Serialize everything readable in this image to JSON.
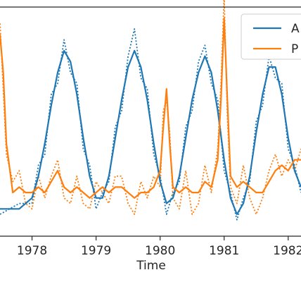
{
  "chart_data": {
    "type": "line",
    "xlabel": "Time",
    "xlim": [
      1977.5,
      1982.2
    ],
    "ylim": [
      -0.5,
      3.7
    ],
    "grid": false,
    "legend": {
      "placement": "top-right",
      "entries": [
        "A",
        "P"
      ]
    },
    "x_ticks": [
      {
        "value": 1978,
        "label": "1978"
      },
      {
        "value": 1979,
        "label": "1979"
      },
      {
        "value": 1980,
        "label": "1980"
      },
      {
        "value": 1981,
        "label": "1981"
      },
      {
        "value": 1982,
        "label": "1982"
      }
    ],
    "colors": {
      "A": "#1f77b4",
      "P": "#ff7f0e"
    },
    "series": [
      {
        "name": "A",
        "style": "solid",
        "color": "#1f77b4",
        "x": [
          1977.5,
          1977.8,
          1978.0,
          1978.1,
          1978.2,
          1978.3,
          1978.4,
          1978.5,
          1978.6,
          1978.7,
          1978.8,
          1978.9,
          1979.0,
          1979.1,
          1979.2,
          1979.3,
          1979.4,
          1979.5,
          1979.6,
          1979.7,
          1979.8,
          1979.9,
          1980.0,
          1980.1,
          1980.2,
          1980.3,
          1980.4,
          1980.5,
          1980.6,
          1980.7,
          1980.8,
          1980.9,
          1981.0,
          1981.1,
          1981.2,
          1981.3,
          1981.4,
          1981.5,
          1981.6,
          1981.7,
          1981.8,
          1981.9,
          1982.0,
          1982.1,
          1982.2
        ],
        "y": [
          0.0,
          0.0,
          0.2,
          0.6,
          1.2,
          1.9,
          2.5,
          2.9,
          2.7,
          2.1,
          1.3,
          0.6,
          0.2,
          0.2,
          0.6,
          1.3,
          2.0,
          2.6,
          2.9,
          2.6,
          2.0,
          1.2,
          0.5,
          0.1,
          0.2,
          0.6,
          1.3,
          2.0,
          2.5,
          2.8,
          2.5,
          1.8,
          0.9,
          0.2,
          -0.1,
          0.1,
          0.6,
          1.4,
          2.1,
          2.6,
          2.6,
          2.1,
          1.3,
          0.7,
          0.4
        ]
      },
      {
        "name": "A (dotted)",
        "style": "dotted",
        "color": "#1f77b4",
        "x": [
          1977.5,
          1977.8,
          1978.0,
          1978.1,
          1978.2,
          1978.3,
          1978.4,
          1978.5,
          1978.6,
          1978.7,
          1978.8,
          1978.9,
          1979.0,
          1979.1,
          1979.2,
          1979.3,
          1979.4,
          1979.5,
          1979.6,
          1979.7,
          1979.8,
          1979.9,
          1980.0,
          1980.1,
          1980.2,
          1980.3,
          1980.4,
          1980.5,
          1980.6,
          1980.7,
          1980.8,
          1980.9,
          1981.0,
          1981.1,
          1981.2,
          1981.3,
          1981.4,
          1981.5,
          1981.6,
          1981.7,
          1981.8,
          1981.9,
          1982.0,
          1982.1,
          1982.2
        ],
        "y": [
          -0.1,
          0.1,
          0.1,
          0.8,
          1.0,
          2.1,
          2.3,
          3.1,
          2.5,
          2.3,
          1.1,
          0.8,
          0.0,
          0.3,
          0.5,
          1.5,
          1.8,
          2.8,
          3.3,
          2.4,
          2.2,
          1.0,
          0.6,
          -0.1,
          0.3,
          0.5,
          1.5,
          1.8,
          2.7,
          3.0,
          2.3,
          2.0,
          0.7,
          0.3,
          -0.2,
          0.2,
          0.5,
          1.6,
          1.9,
          2.8,
          2.4,
          2.3,
          1.1,
          0.8,
          0.3
        ]
      },
      {
        "name": "P",
        "style": "solid",
        "color": "#ff7f0e",
        "x": [
          1977.5,
          1977.55,
          1977.6,
          1977.7,
          1977.8,
          1977.9,
          1978.0,
          1978.1,
          1978.2,
          1978.3,
          1978.4,
          1978.5,
          1978.6,
          1978.7,
          1978.8,
          1978.9,
          1979.0,
          1979.1,
          1979.2,
          1979.3,
          1979.4,
          1979.5,
          1979.6,
          1979.7,
          1979.8,
          1979.9,
          1980.0,
          1980.05,
          1980.1,
          1980.15,
          1980.2,
          1980.3,
          1980.4,
          1980.5,
          1980.6,
          1980.7,
          1980.8,
          1980.9,
          1980.95,
          1981.0,
          1981.05,
          1981.1,
          1981.2,
          1981.3,
          1981.4,
          1981.5,
          1981.6,
          1981.7,
          1981.8,
          1981.9,
          1982.0,
          1982.1,
          1982.2
        ],
        "y": [
          3.2,
          2.5,
          1.2,
          0.3,
          0.4,
          0.3,
          0.3,
          0.4,
          0.3,
          0.5,
          0.7,
          0.4,
          0.3,
          0.4,
          0.3,
          0.2,
          0.3,
          0.4,
          0.3,
          0.4,
          0.4,
          0.3,
          0.2,
          0.3,
          0.3,
          0.4,
          0.7,
          1.5,
          2.2,
          1.2,
          0.4,
          0.3,
          0.4,
          0.3,
          0.3,
          0.5,
          0.4,
          0.9,
          2.0,
          3.5,
          2.0,
          0.6,
          0.4,
          0.5,
          0.4,
          0.3,
          0.3,
          0.5,
          0.7,
          0.8,
          0.7,
          0.9,
          0.9
        ]
      },
      {
        "name": "P (dotted)",
        "style": "dotted",
        "color": "#ff7f0e",
        "x": [
          1977.5,
          1977.55,
          1977.6,
          1977.7,
          1977.8,
          1977.9,
          1978.0,
          1978.1,
          1978.2,
          1978.3,
          1978.4,
          1978.5,
          1978.6,
          1978.7,
          1978.8,
          1978.9,
          1979.0,
          1979.1,
          1979.2,
          1979.3,
          1979.4,
          1979.5,
          1979.6,
          1979.7,
          1979.8,
          1979.9,
          1980.0,
          1980.05,
          1980.1,
          1980.15,
          1980.2,
          1980.3,
          1980.4,
          1980.5,
          1980.6,
          1980.7,
          1980.8,
          1980.9,
          1980.95,
          1981.0,
          1981.05,
          1981.1,
          1981.2,
          1981.3,
          1981.4,
          1981.5,
          1981.6,
          1981.7,
          1981.8,
          1981.9,
          1982.0,
          1982.1,
          1982.2
        ],
        "y": [
          3.4,
          2.2,
          1.0,
          0.5,
          0.7,
          0.1,
          0.0,
          0.6,
          0.2,
          0.6,
          0.9,
          0.2,
          0.1,
          0.6,
          0.1,
          0.0,
          0.5,
          0.3,
          0.1,
          0.6,
          0.6,
          0.1,
          -0.1,
          0.5,
          0.2,
          0.6,
          0.4,
          1.8,
          2.0,
          1.4,
          0.2,
          0.0,
          0.7,
          -0.1,
          0.1,
          0.8,
          0.3,
          1.1,
          2.3,
          3.9,
          1.7,
          0.4,
          0.1,
          0.8,
          0.2,
          -0.1,
          0.2,
          0.7,
          1.0,
          0.6,
          0.9,
          0.7,
          1.1
        ]
      }
    ]
  }
}
